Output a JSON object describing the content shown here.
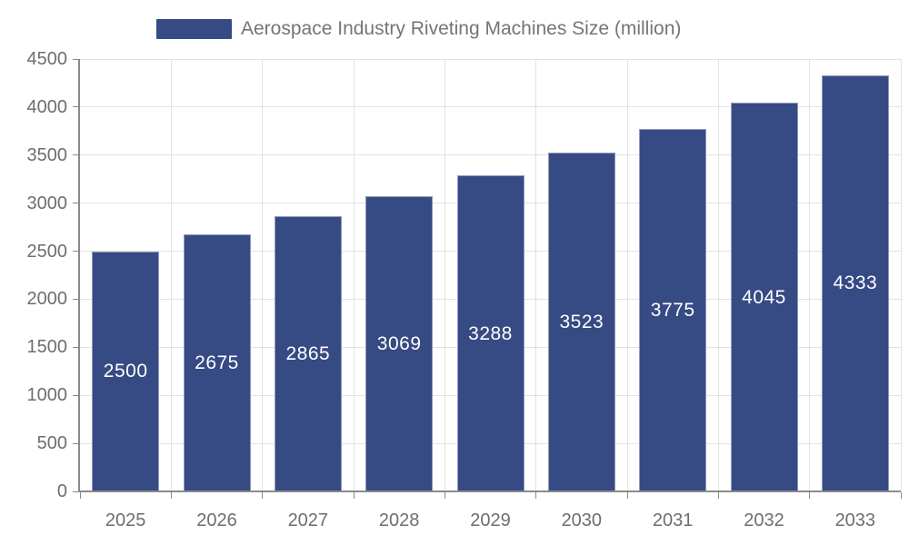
{
  "legend": {
    "label": "Aerospace Industry Riveting Machines Size (million)"
  },
  "chart_data": {
    "type": "bar",
    "title": "Aerospace Industry Riveting Machines Size (million)",
    "categories": [
      "2025",
      "2026",
      "2027",
      "2028",
      "2029",
      "2030",
      "2031",
      "2032",
      "2033"
    ],
    "values": [
      2500,
      2675,
      2865,
      3069,
      3288,
      3523,
      3775,
      4045,
      4333
    ],
    "yticks": [
      0,
      500,
      1000,
      1500,
      2000,
      2500,
      3000,
      3500,
      4000,
      4500
    ],
    "ylim": [
      0,
      4500
    ],
    "xlabel": "",
    "ylabel": "",
    "grid": true,
    "legend_position": "top",
    "bar_labels_visible": true,
    "colors": {
      "bar": "#364a84",
      "bar_label": "#ffffff",
      "axis_line": "#8a8a8a",
      "grid_line": "#e2e2e2",
      "tick_label": "#6e6e6e",
      "legend_text": "#757575",
      "background": "#ffffff"
    }
  }
}
